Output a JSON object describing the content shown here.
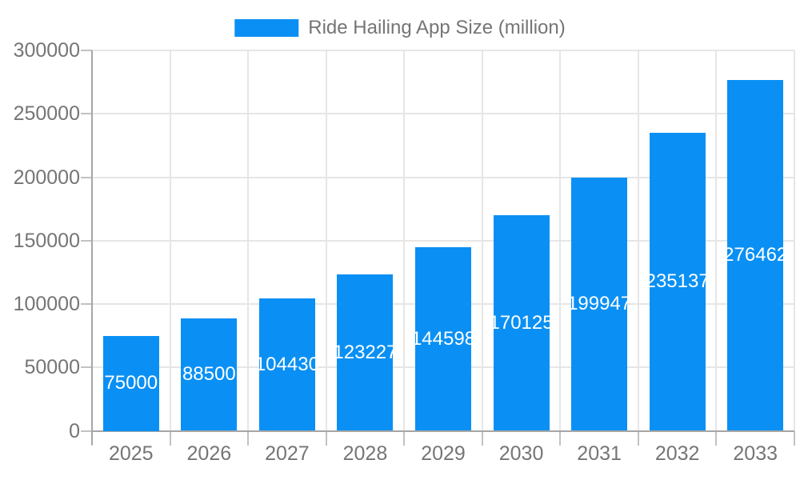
{
  "chart_data": {
    "type": "bar",
    "title": "Ride Hailing App Size (million)",
    "legend": [
      "Ride Hailing App Size (million)"
    ],
    "legend_position": "top-center",
    "categories": [
      "2025",
      "2026",
      "2027",
      "2028",
      "2029",
      "2030",
      "2031",
      "2032",
      "2033"
    ],
    "values": [
      75000,
      88500,
      104430,
      123227,
      144598,
      170125,
      199947,
      235137,
      276462
    ],
    "xlabel": "",
    "ylabel": "",
    "ylim": [
      0,
      300000
    ],
    "yticks": [
      0,
      50000,
      100000,
      150000,
      200000,
      250000,
      300000
    ],
    "grid": true,
    "bar_labels_visible": true,
    "colors": {
      "bar": "#0a90f4",
      "grid": "#e6e6e6",
      "axis": "#a6a6a6",
      "tick": "#c2c2c2",
      "axis_label": "#757575",
      "bar_label": "#ffffff",
      "background": "#ffffff"
    }
  }
}
